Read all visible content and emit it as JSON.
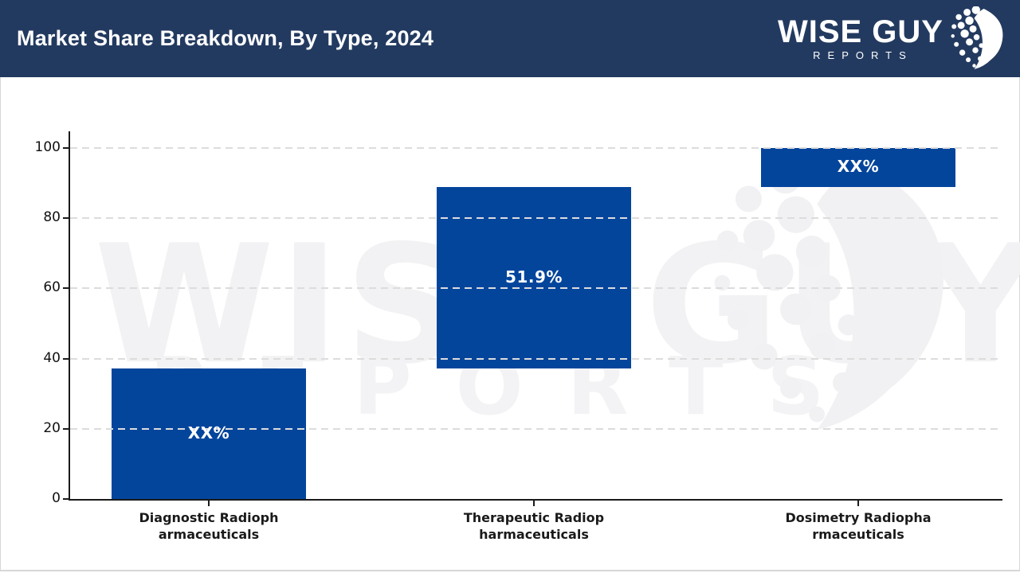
{
  "header": {
    "title": "Market Share Breakdown, By Type, 2024",
    "logo": {
      "line1": "WISE GUY",
      "line2": "REPORTS"
    }
  },
  "watermark": {
    "line1": "WISE GUY",
    "line2": "REPORTS"
  },
  "chart_data": {
    "type": "bar",
    "subtype": "waterfall",
    "title": "Market Share Breakdown, By Type, 2024",
    "categories": [
      [
        "Diagnostic Radioph",
        "armaceuticals"
      ],
      [
        "Therapeutic Radiop",
        "harmaceuticals"
      ],
      [
        "Dosimetry Radiopha",
        "rmaceuticals"
      ]
    ],
    "series": [
      {
        "name": "Diagnostic Radiopharmaceuticals",
        "base": 0,
        "value": 37.1,
        "label": "XX%"
      },
      {
        "name": "Therapeutic Radiopharmaceuticals",
        "base": 37.1,
        "value": 51.9,
        "label": "51.9%"
      },
      {
        "name": "Dosimetry Radiopharmaceuticals",
        "base": 89.0,
        "value": 11.0,
        "label": "XX%"
      }
    ],
    "xlabel": "",
    "ylabel": "",
    "ylim": [
      0,
      100
    ],
    "yticks": [
      0,
      20,
      40,
      60,
      80,
      100
    ],
    "grid": "horizontal-dashed-over-bars",
    "legend": "none"
  },
  "colors": {
    "header_bg": "#233a60",
    "bar": "#04459c",
    "grid": "#dcdcdc",
    "axis": "#1a1a1a",
    "watermark": "#f2f2f4",
    "page_border": "#d7d7d7"
  }
}
